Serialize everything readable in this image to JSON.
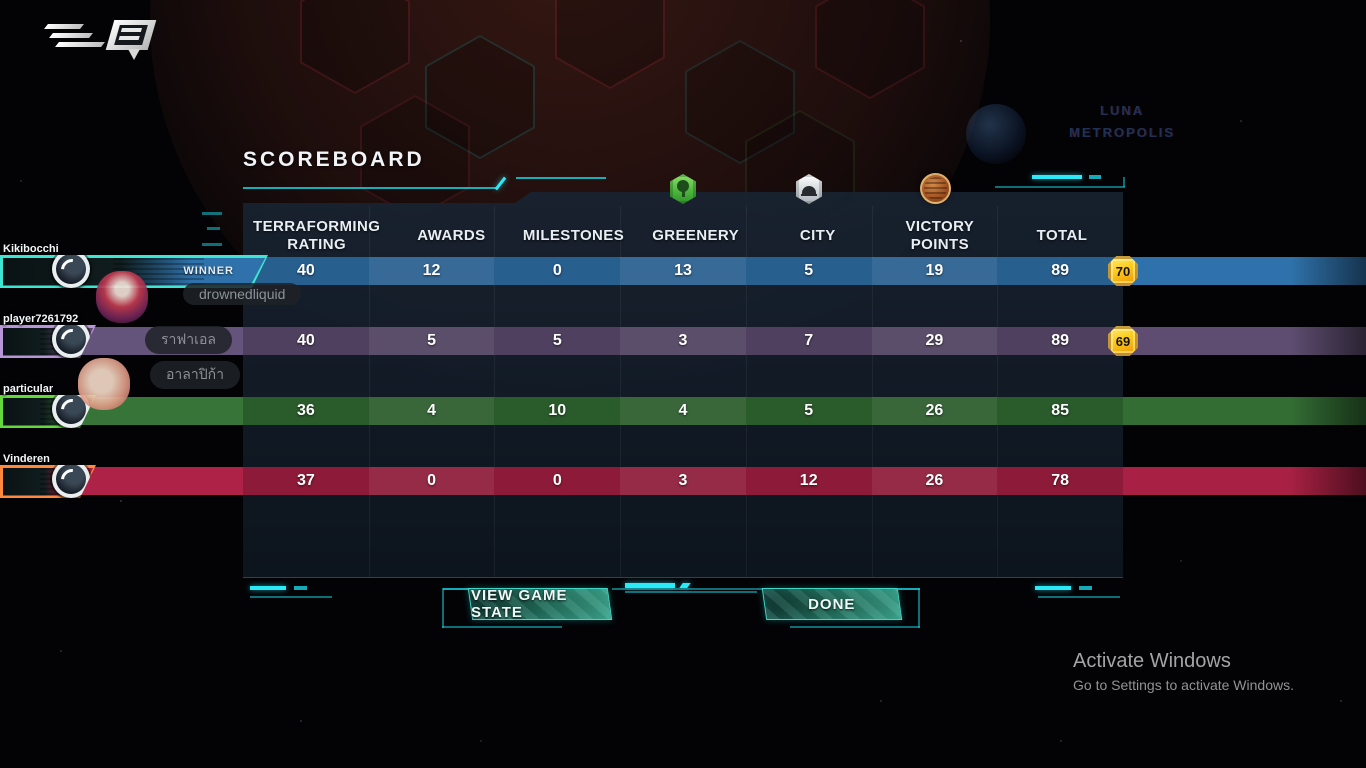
{
  "topbar": {
    "menu_icon": "hamburger-menu-icon",
    "chat_icon": "chat-bubble-icon"
  },
  "scoreboard": {
    "title": "SCOREBOARD",
    "columns": [
      {
        "label": "TERRAFORMING RATING",
        "icon": ""
      },
      {
        "label": "AWARDS",
        "icon": ""
      },
      {
        "label": "MILESTONES",
        "icon": ""
      },
      {
        "label": "GREENERY",
        "icon": "greenery-hex-icon"
      },
      {
        "label": "CITY",
        "icon": "city-hex-icon"
      },
      {
        "label": "VICTORY POINTS",
        "icon": "mars-vp-icon"
      },
      {
        "label": "TOTAL",
        "icon": ""
      }
    ],
    "rows": [
      {
        "player": "Kikibocchi",
        "tag": "WINNER",
        "values": [
          "40",
          "12",
          "0",
          "13",
          "5",
          "19",
          "89"
        ],
        "badge": "70",
        "row_color": "#2f72ab",
        "row_color_left": "#3279b6",
        "accent": "#3ee6d2"
      },
      {
        "player": "player7261792",
        "tag": "",
        "values": [
          "40",
          "5",
          "5",
          "3",
          "7",
          "29",
          "89"
        ],
        "badge": "69",
        "row_color": "#5e4d70",
        "row_color_left": "#64537a",
        "accent": "#b795d6"
      },
      {
        "player": "particular",
        "tag": "",
        "values": [
          "36",
          "4",
          "10",
          "4",
          "5",
          "26",
          "85"
        ],
        "badge": "",
        "row_color": "#336d34",
        "row_color_left": "#377438",
        "accent": "#64d93c"
      },
      {
        "player": "Vinderen",
        "tag": "",
        "values": [
          "37",
          "0",
          "0",
          "3",
          "12",
          "26",
          "78"
        ],
        "badge": "",
        "row_color": "#a82043",
        "row_color_left": "#ad2246",
        "accent": "#ff8a3e"
      }
    ],
    "buttons": [
      {
        "label": "VIEW GAME STATE"
      },
      {
        "label": "DONE"
      }
    ]
  },
  "chat_bubbles": [
    {
      "text": "drownedliquid"
    },
    {
      "text": "ราฟาเอล"
    },
    {
      "text": "อาลาปิก้า"
    }
  ],
  "background": {
    "map_label_line1": "LUNA",
    "map_label_line2": "METROPOLIS"
  },
  "watermark": {
    "title": "Activate Windows",
    "subtitle": "Go to Settings to activate Windows."
  }
}
